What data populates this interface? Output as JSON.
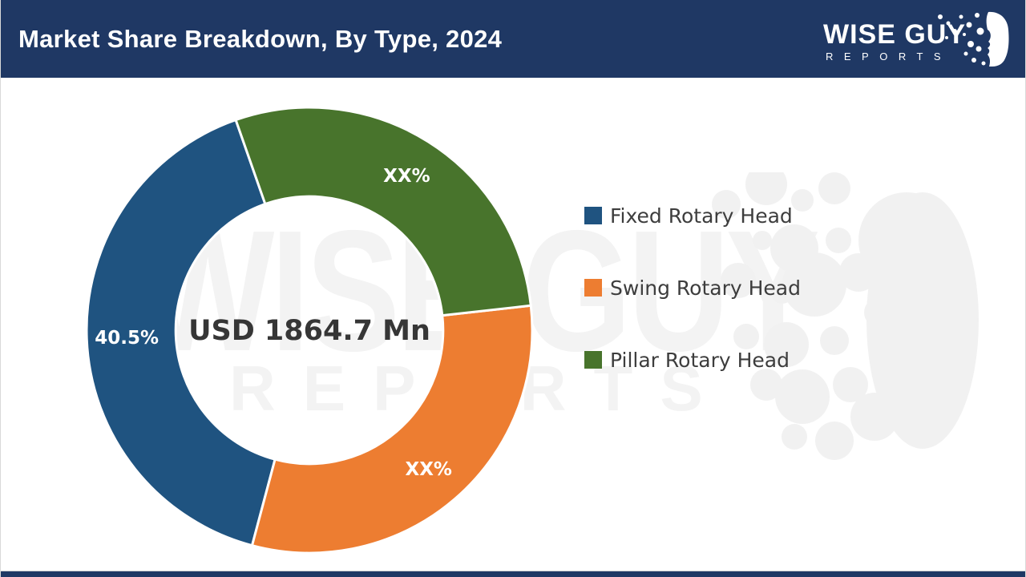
{
  "header": {
    "title": "Market Share Breakdown, By Type, 2024",
    "background_color": "#1f3864",
    "logo": {
      "line1": "WISE GUY",
      "line2": "REPORTS"
    }
  },
  "chart_data": {
    "type": "pie",
    "donut": true,
    "title": "Market Share Breakdown, By Type, 2024",
    "center_label": "USD 1864.7 Mn",
    "categories": [
      "Fixed Rotary Head",
      "Swing Rotary Head",
      "Pillar Rotary Head"
    ],
    "values": [
      40.5,
      30.9,
      28.6
    ],
    "slice_labels": [
      "40.5%",
      "XX%",
      "XX%"
    ],
    "colors": [
      "#1f5380",
      "#ed7d31",
      "#48742c"
    ],
    "start_angle_deg": 109.3,
    "direction": "counterclockwise",
    "inner_radius_ratio": 0.6,
    "legend_position": "right",
    "note": "Swing and Pillar shares are masked as XX% in the image; their values are estimated from arc angles"
  },
  "legend": {
    "items": [
      {
        "label": "Fixed Rotary Head",
        "color": "#1f5380"
      },
      {
        "label": "Swing Rotary Head",
        "color": "#ed7d31"
      },
      {
        "label": "Pillar Rotary Head",
        "color": "#48742c"
      }
    ]
  },
  "watermark": {
    "line1": "WISE GUY",
    "line2": "REPORTS"
  },
  "footer": {
    "bar_color": "#1f3864"
  }
}
